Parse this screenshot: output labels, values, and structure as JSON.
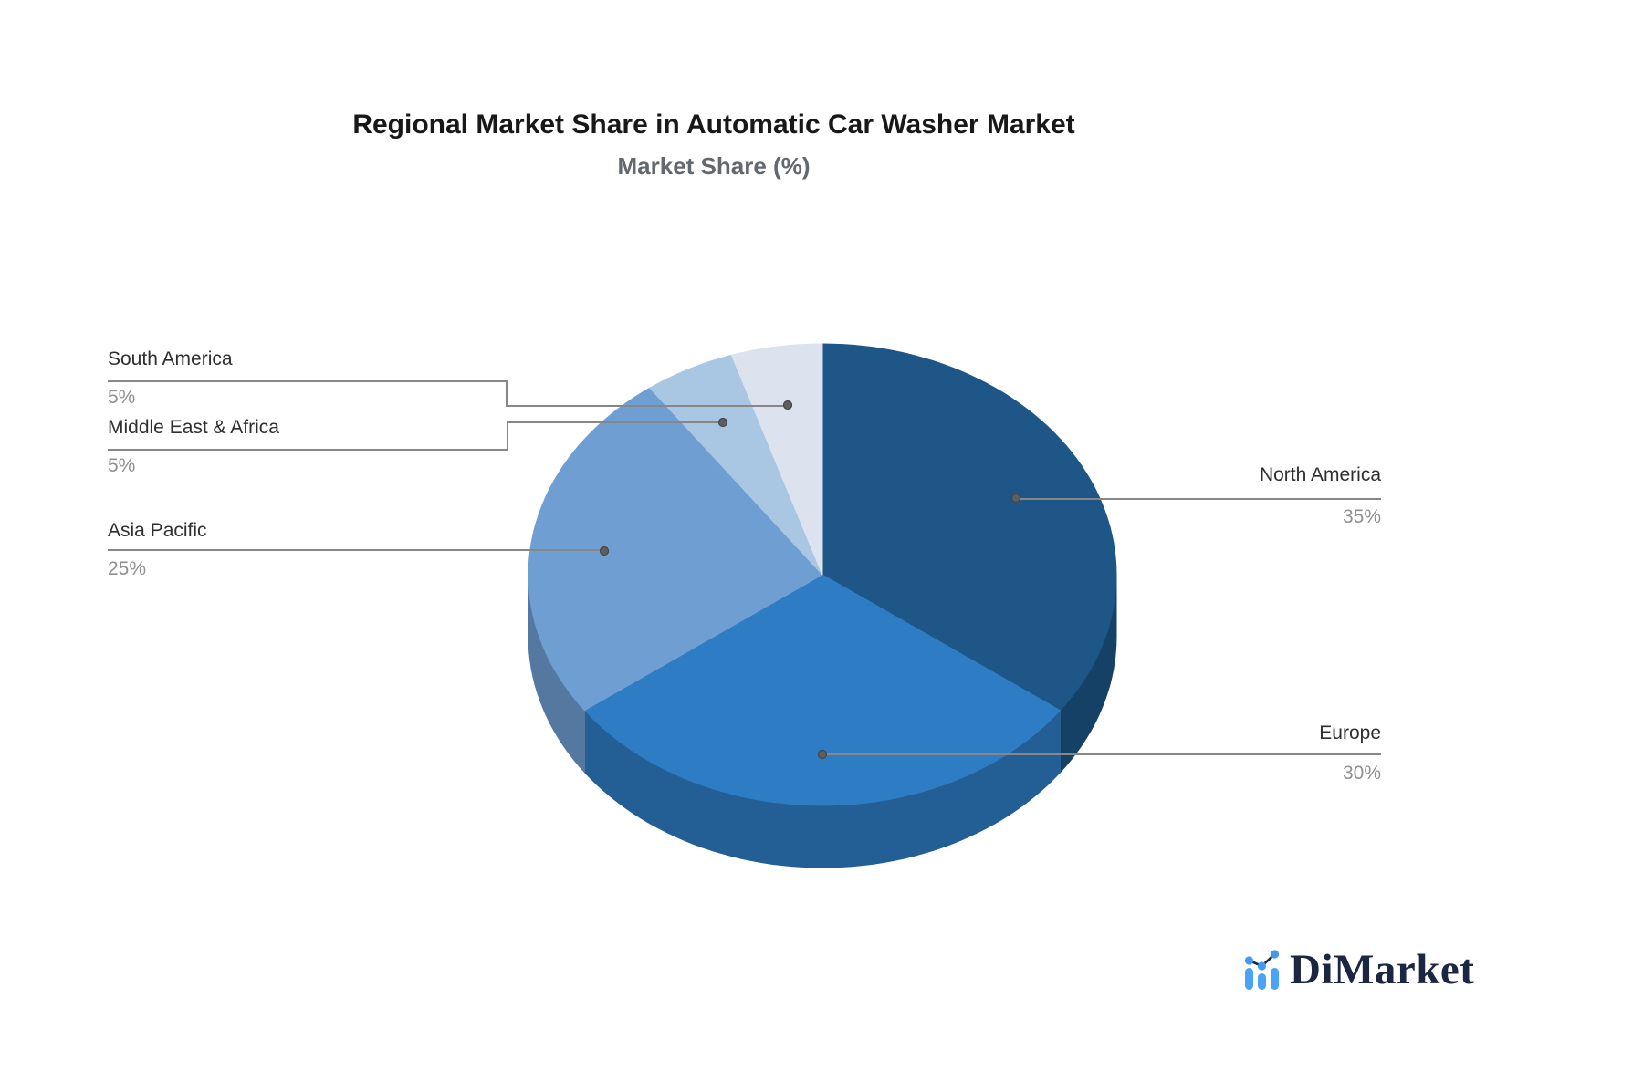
{
  "chart": {
    "title": "Regional Market Share in Automatic Car Washer Market",
    "subtitle": "Market Share (%)"
  },
  "chart_data": {
    "type": "pie",
    "style": "3d",
    "title": "Regional Market Share in Automatic Car Washer Market",
    "subtitle": "Market Share (%)",
    "unit": "%",
    "start_angle_deg": 0,
    "direction": "clockwise",
    "legend": "none",
    "slices": [
      {
        "label": "North America",
        "value": 35,
        "display": "35%",
        "color": "#1d5687"
      },
      {
        "label": "Europe",
        "value": 30,
        "display": "30%",
        "color": "#2e7cc3"
      },
      {
        "label": "Asia Pacific",
        "value": 25,
        "display": "25%",
        "color": "#6f9ed3"
      },
      {
        "label": "Middle East & Africa",
        "value": 5,
        "display": "5%",
        "color": "#a9c6e2"
      },
      {
        "label": "South America",
        "value": 5,
        "display": "5%",
        "color": "#dce3ef"
      }
    ],
    "label_text_color": "#2e2e2e",
    "value_text_color": "#8f8f8f",
    "connector_color": "#878787",
    "connector_dot_color": "#5e5e5e"
  },
  "branding": {
    "logo_text": "DiMarket",
    "logo_icon": "mini-bar-line-chart-icon",
    "logo_bar_color": "#4aa3f7",
    "logo_text_color": "#1b2742"
  }
}
